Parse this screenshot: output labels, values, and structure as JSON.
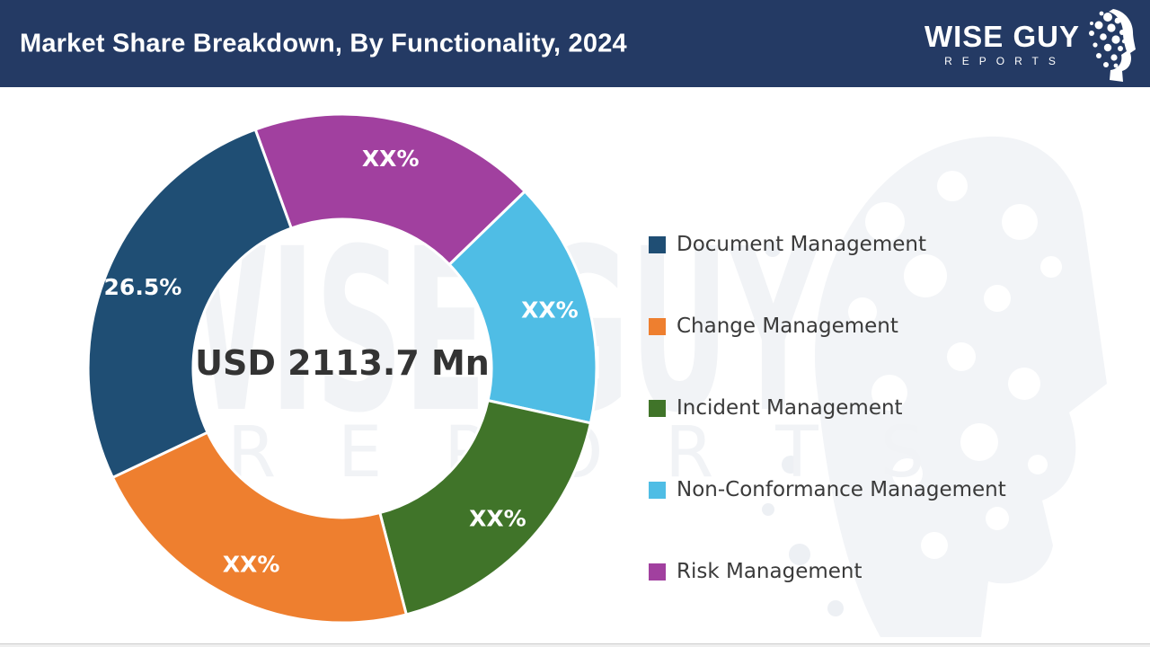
{
  "header": {
    "title": "Market Share Breakdown, By Functionality, 2024",
    "logo": {
      "line1": "WISE GUY",
      "line2": "REPORTS"
    }
  },
  "watermark": {
    "line1": "WISE GUY",
    "line2": "R E P O R T S"
  },
  "chart_data": {
    "type": "pie",
    "donut": true,
    "title": "Market Share Breakdown, By Functionality, 2024",
    "center_label": "USD 2113.7 Mn",
    "start_angle_deg_from_top_clockwise": -20,
    "draw_order_clockwise": [
      4,
      3,
      2,
      1,
      0
    ],
    "legend_position": "right",
    "segments": [
      {
        "label": "Document Management",
        "value_pct": 26.5,
        "display": "26.5%",
        "color": "#1F4E74"
      },
      {
        "label": "Change Management",
        "value_pct": 22.0,
        "display": "XX%",
        "color": "#EE7F2F"
      },
      {
        "label": "Incident Management",
        "value_pct": 17.5,
        "display": "XX%",
        "color": "#407429"
      },
      {
        "label": "Non-Conformance Management",
        "value_pct": 15.7,
        "display": "XX%",
        "color": "#4FBDE5"
      },
      {
        "label": "Risk Management",
        "value_pct": 18.3,
        "display": "XX%",
        "color": "#A1409F"
      }
    ]
  }
}
